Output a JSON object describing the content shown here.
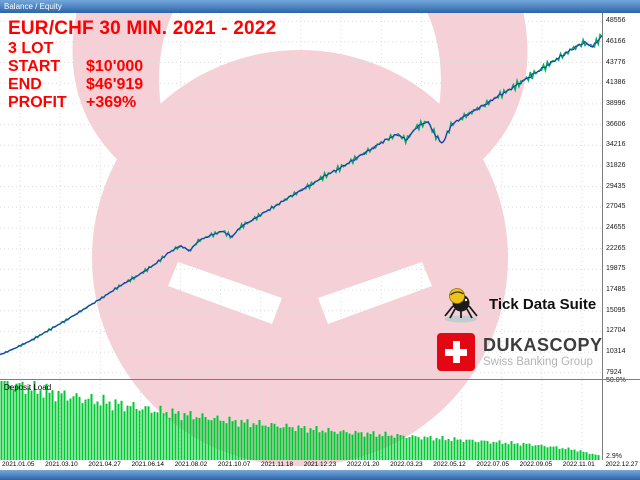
{
  "window": {
    "top_title": "Balance / Equity"
  },
  "overlay": {
    "title_line": "EUR/CHF 30 MIN. 2021 - 2022",
    "lot_line": "3 LOT",
    "rows": [
      {
        "label": "START",
        "value": "$10'000"
      },
      {
        "label": "END",
        "value": "$46'919"
      },
      {
        "label": "PROFIT",
        "value": "+369%"
      }
    ],
    "text_color": "#ff0000"
  },
  "logos": {
    "tds_text": "Tick Data Suite",
    "dukascopy_text": "DUKASCOPY",
    "dukascopy_subtext": "Swiss Banking Group",
    "dukascopy_red": "#e30613"
  },
  "deposit_panel": {
    "label": "Deposit Load"
  },
  "chart_data": [
    {
      "type": "line",
      "title": "Balance / Equity",
      "x_labels": [
        "2021.01.05",
        "2021.03.10",
        "2021.04.27",
        "2021.06.14",
        "2021.08.02",
        "2021.10.07",
        "2021.11.18",
        "2021.12.23",
        "2022.01.20",
        "2022.03.23",
        "2022.05.12",
        "2022.07.05",
        "2022.09.05",
        "2022.11.01",
        "2022.12.27"
      ],
      "y_ticks": [
        48556,
        46166,
        43776,
        41386,
        38996,
        36606,
        34216,
        31826,
        29435,
        27045,
        24655,
        22265,
        19875,
        17485,
        15095,
        12704,
        10314,
        7924
      ],
      "ylim": [
        7200,
        49500
      ],
      "grid": true,
      "series": [
        {
          "name": "Balance",
          "color": "#2929c8",
          "x": [
            0,
            0.02,
            0.05,
            0.08,
            0.11,
            0.14,
            0.17,
            0.2,
            0.23,
            0.26,
            0.28,
            0.3,
            0.315,
            0.33,
            0.35,
            0.37,
            0.385,
            0.4,
            0.42,
            0.44,
            0.46,
            0.48,
            0.5,
            0.52,
            0.54,
            0.56,
            0.58,
            0.6,
            0.62,
            0.64,
            0.66,
            0.675,
            0.69,
            0.71,
            0.725,
            0.735,
            0.75,
            0.77,
            0.79,
            0.81,
            0.83,
            0.85,
            0.87,
            0.89,
            0.91,
            0.93,
            0.95,
            0.97,
            0.985,
            1.0
          ],
          "values": [
            10000,
            10600,
            11600,
            12800,
            14000,
            15300,
            16600,
            18000,
            19200,
            20600,
            21800,
            22600,
            22000,
            23200,
            23800,
            24300,
            23600,
            24800,
            25600,
            26500,
            27300,
            28200,
            29000,
            29800,
            30700,
            31400,
            32200,
            33100,
            33900,
            34800,
            35500,
            34800,
            36200,
            37000,
            35200,
            34400,
            36600,
            37500,
            38300,
            39100,
            40000,
            40800,
            41700,
            42600,
            43500,
            44400,
            45300,
            46100,
            45600,
            46919
          ]
        },
        {
          "name": "Equity",
          "color": "#00ad5b"
        }
      ]
    },
    {
      "type": "bar",
      "title": "Deposit Load",
      "color": "#00c832",
      "ylim": [
        0,
        50
      ],
      "y_tick_labels": [
        "50.0%",
        "2.9%"
      ],
      "values": [
        50,
        46,
        43,
        40,
        37.5,
        35,
        32.5,
        30,
        28,
        26,
        24,
        22.5,
        21,
        19.5,
        18,
        17,
        16,
        15,
        14,
        13,
        12,
        11,
        10,
        8.5,
        6.5,
        2.9
      ]
    }
  ]
}
